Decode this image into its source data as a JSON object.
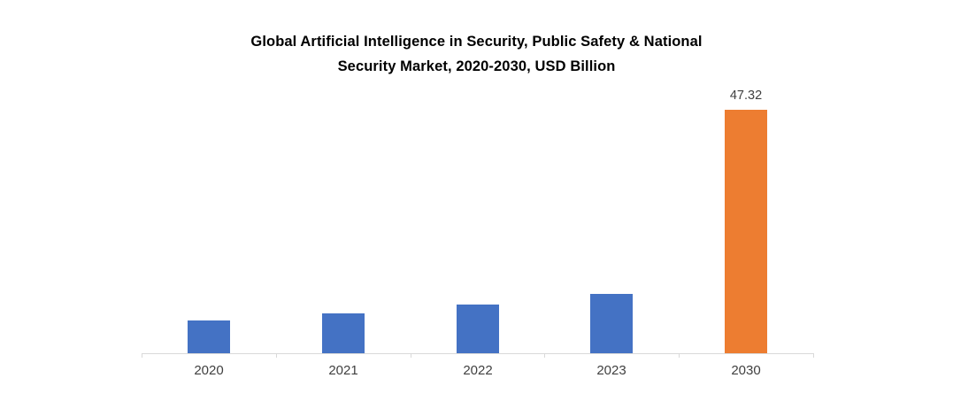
{
  "chart_data": {
    "type": "bar",
    "title": "Global Artificial Intelligence in Security, Public Safety & National\nSecurity Market, 2020-2030, USD Billion",
    "categories": [
      "2020",
      "2021",
      "2022",
      "2023",
      "2030"
    ],
    "values": [
      6.3,
      7.8,
      9.5,
      11.5,
      47.32
    ],
    "data_labels": [
      "",
      "",
      "",
      "",
      "47.32"
    ],
    "bar_colors": [
      "#4472C4",
      "#4472C4",
      "#4472C4",
      "#4472C4",
      "#ED7D31"
    ],
    "xlabel": "",
    "ylabel": "",
    "ylim": [
      0,
      47.32
    ],
    "grid": false,
    "legend": "none",
    "colors": {
      "axis_line": "#D9D9D9",
      "tick_label": "#404040",
      "data_label": "#404040",
      "title": "#000000",
      "background": "#FFFFFF"
    }
  }
}
